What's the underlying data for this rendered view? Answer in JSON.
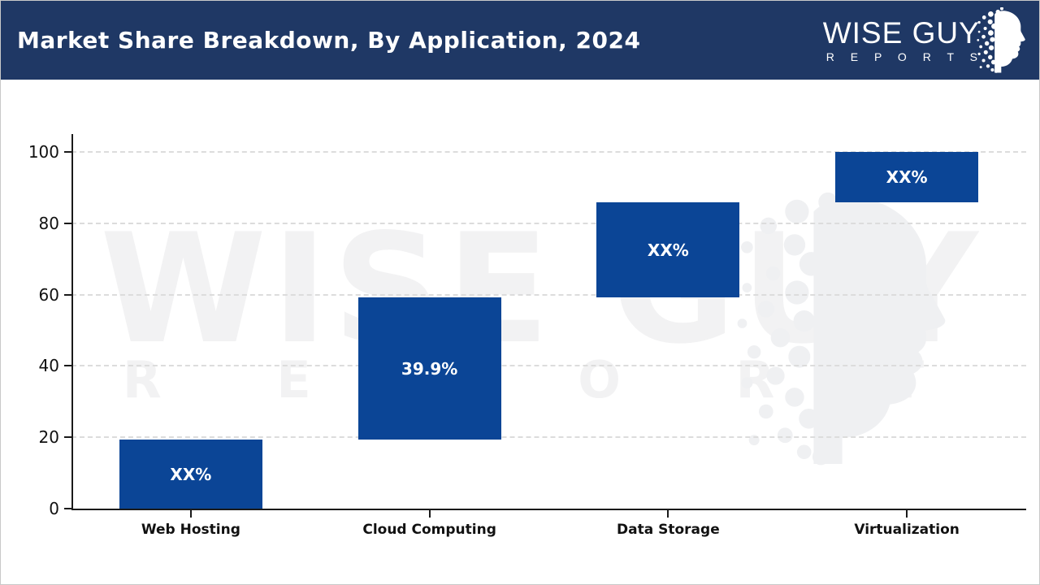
{
  "header": {
    "title": "Market Share Breakdown, By Application, 2024",
    "brand": {
      "line1": "WISE GUY",
      "line2": "R E P O R T S",
      "face_icon": "wiseguy-dotted-face"
    },
    "bg_color": "#1f3865",
    "text_color": "#ffffff"
  },
  "watermark": {
    "line1": "WISE GUY",
    "line2": "R E P O R T S",
    "color": "#f2f2f3"
  },
  "chart_data": {
    "type": "bar",
    "variant": "waterfall",
    "title": "Market Share Breakdown, By Application, 2024",
    "categories": [
      "Web Hosting",
      "Cloud Computing",
      "Data Storage",
      "Virtualization"
    ],
    "values_pct": [
      19.3,
      39.9,
      26.6,
      14.2
    ],
    "cumulative": [
      {
        "start": 0,
        "end": 19.3
      },
      {
        "start": 19.3,
        "end": 59.2
      },
      {
        "start": 59.2,
        "end": 85.8
      },
      {
        "start": 85.8,
        "end": 100
      }
    ],
    "bar_labels": [
      "XX%",
      "39.9%",
      "XX%",
      "XX%"
    ],
    "yticks": [
      0,
      20,
      40,
      60,
      80,
      100
    ],
    "ylim": [
      0,
      105
    ],
    "xlabel": "",
    "ylabel": "",
    "legend": null,
    "grid": "horizontal-dashed",
    "grid_color": "#dcdcdc",
    "bar_color": "#0b4596",
    "bar_label_color": "#ffffff",
    "axis_color": "#1a1a1a"
  }
}
